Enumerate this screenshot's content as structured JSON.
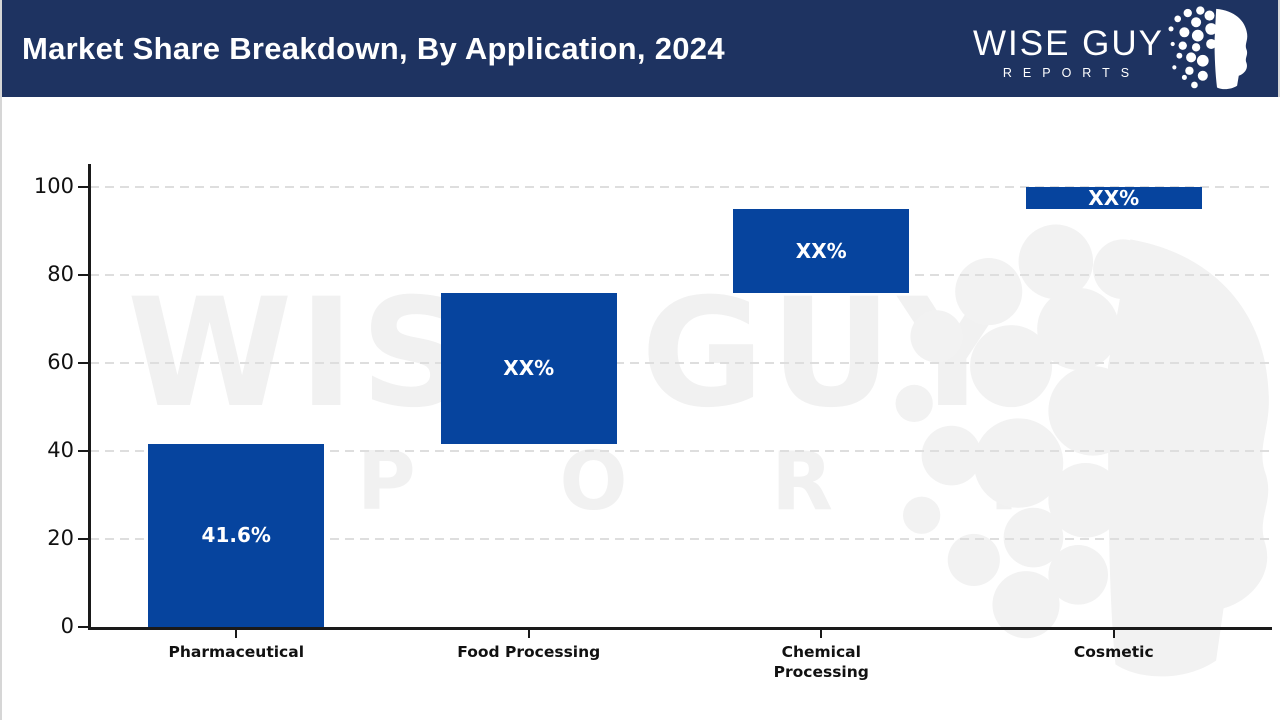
{
  "header": {
    "title": "Market Share Breakdown, By Application, 2024",
    "bg_color": "#1e3361",
    "logo": {
      "line1": "WISE GUY",
      "line2": "REPORTS"
    }
  },
  "watermark": {
    "line1": "WISE GUY",
    "line2": "P O R T S"
  },
  "chart_data": {
    "type": "bar",
    "subtype": "waterfall-floating-segments",
    "title": "Market Share Breakdown, By Application, 2024",
    "categories": [
      "Pharmaceutical",
      "Food Processing",
      "Chemical Processing",
      "Cosmetic"
    ],
    "bars": [
      {
        "category": "Pharmaceutical",
        "start": 0,
        "end": 41.6,
        "label": "41.6%"
      },
      {
        "category": "Food Processing",
        "start": 41.6,
        "end": 76,
        "label": "XX%"
      },
      {
        "category": "Chemical Processing",
        "start": 76,
        "end": 95,
        "label": "XX%"
      },
      {
        "category": "Cosmetic",
        "start": 95,
        "end": 100,
        "label": "XX%"
      }
    ],
    "ylim": [
      0,
      100
    ],
    "yticks": [
      0,
      20,
      40,
      60,
      80,
      100
    ],
    "grid": "horizontal-dashed",
    "legend": "none",
    "bar_color": "#06449e",
    "bar_label_color": "#ffffff",
    "axis_color": "#1a1a1a"
  }
}
